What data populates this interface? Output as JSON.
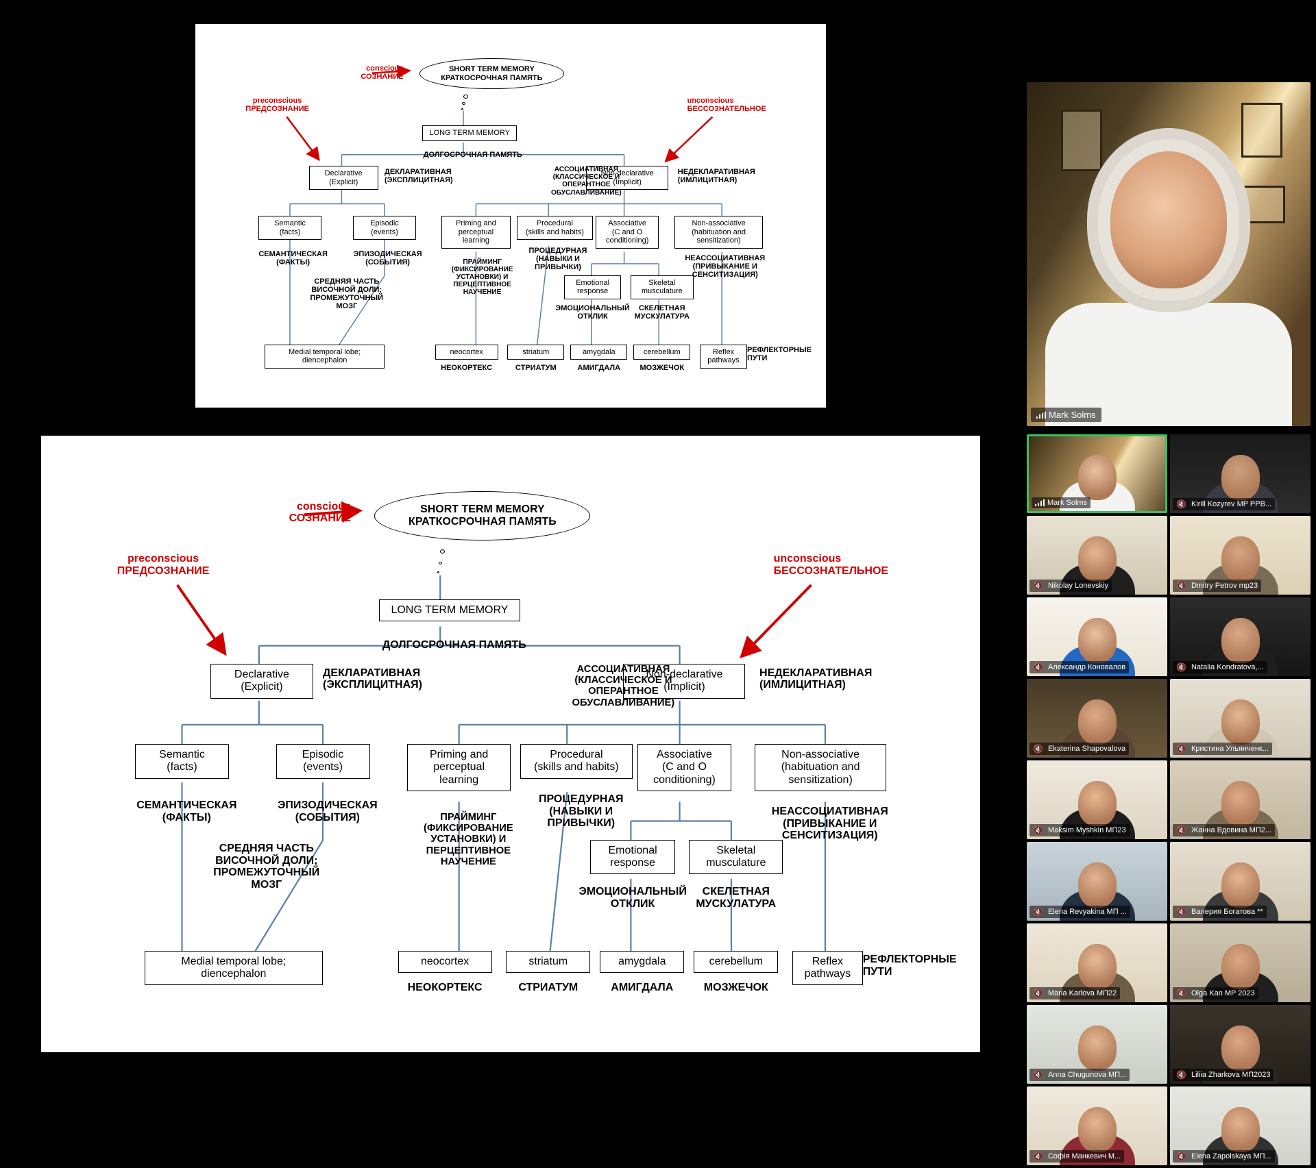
{
  "speaker": {
    "name": "Mark Solms"
  },
  "gallery": [
    [
      {
        "name": "Mark Solms",
        "muted": false,
        "active": true,
        "bg": "linear-gradient(120deg,#3a2d14,#c7a269 55%,#f3e0ae 60%,#5a4325)",
        "skin": "#e9c2a3",
        "body": "#f3f3f1"
      },
      {
        "name": "Kirill Kozyrev MP PPB...",
        "muted": true,
        "active": false,
        "bg": "linear-gradient(#1a1a1a,#2c2c2c)",
        "skin": "#caa07c",
        "body": "#3a3a42"
      }
    ],
    [
      {
        "name": "Nikolay Lonevskiy",
        "muted": true,
        "active": false,
        "bg": "linear-gradient(#e8e2d2,#cfc7b2)",
        "skin": "#e5b793",
        "body": "#1f1f1f"
      },
      {
        "name": "Dmitry Petrov mp23",
        "muted": true,
        "active": false,
        "bg": "linear-gradient(#ece4cf,#ddd0b5)",
        "skin": "#d7a582",
        "body": "#7a6b59"
      }
    ],
    [
      {
        "name": "Александр Коновалов",
        "muted": true,
        "active": false,
        "bg": "linear-gradient(#f7f4ee,#eae3d5)",
        "skin": "#e9c3a2",
        "body": "#2468c4"
      },
      {
        "name": "Natalia Kondratova,...",
        "muted": true,
        "active": false,
        "bg": "linear-gradient(#2b2b2b,#151515)",
        "skin": "#d9aa88",
        "body": "#1e1e1e"
      }
    ],
    [
      {
        "name": "Ekaterina Shapovalova",
        "muted": true,
        "active": false,
        "bg": "linear-gradient(#473b28,#6b583a)",
        "skin": "#dca986",
        "body": "#5b4533"
      },
      {
        "name": "Кристина Ульянченк...",
        "muted": true,
        "active": false,
        "bg": "linear-gradient(#e6e0d4,#d2cab7)",
        "skin": "#e6b995",
        "body": "#cfc6b3"
      }
    ],
    [
      {
        "name": "Maksim Myshkin МП23",
        "muted": true,
        "active": false,
        "bg": "linear-gradient(#efeadf,#ddd4c2)",
        "skin": "#e7b892",
        "body": "#1c1c1c"
      },
      {
        "name": "Жанна Вдовина МП2...",
        "muted": true,
        "active": false,
        "bg": "linear-gradient(#d9cfbc,#c1b69f)",
        "skin": "#ddaa88",
        "body": "#7d6a52"
      }
    ],
    [
      {
        "name": "Elena Revyakina МП ...",
        "muted": true,
        "active": false,
        "bg": "linear-gradient(#c9d4da,#a8b5bd)",
        "skin": "#e3b493",
        "body": "#223042"
      },
      {
        "name": "Валерия Богатова **",
        "muted": true,
        "active": false,
        "bg": "linear-gradient(#e5ded0,#d0c6b2)",
        "skin": "#e6b692",
        "body": "#3a3a3a"
      }
    ],
    [
      {
        "name": "Maria Karlova МП22",
        "muted": true,
        "active": false,
        "bg": "linear-gradient(#eee7d8,#ddd2bd)",
        "skin": "#e8bc99",
        "body": "#6e5c45"
      },
      {
        "name": "Olga Kan MP 2023",
        "muted": true,
        "active": false,
        "bg": "linear-gradient(#cfc6b3,#b7ac95)",
        "skin": "#dba885",
        "body": "#1f1f1f"
      }
    ],
    [
      {
        "name": "Anna Chugunova МП...",
        "muted": true,
        "active": false,
        "bg": "linear-gradient(#e2e6e0,#c9cec5)",
        "skin": "#e5b794",
        "body": "#cfd3cb"
      },
      {
        "name": "Liliia Zharkova МП2023",
        "muted": true,
        "active": false,
        "bg": "linear-gradient(#3a332a,#241f18)",
        "skin": "#dba784",
        "body": "#2c2620"
      }
    ],
    [
      {
        "name": "Софiя Манкевич М...",
        "muted": true,
        "active": false,
        "bg": "linear-gradient(#efeadd,#ded4c1)",
        "skin": "#e6b793",
        "body": "#8d2a34"
      },
      {
        "name": "Elena Zapolskaya МП...",
        "muted": true,
        "active": false,
        "bg": "linear-gradient(#e6e8e1,#d1d3cb)",
        "skin": "#e4b28f",
        "body": "#303030"
      }
    ]
  ],
  "slide": {
    "red_labels": {
      "conscious_en": "conscious",
      "conscious_ru": "СОЗНАНИЕ",
      "precon_en": "preconscious",
      "precon_ru": "ПРЕДСОЗНАНИЕ",
      "uncon_en": "unconscious",
      "uncon_ru": "БЕССОЗНАТЕЛЬНОЕ"
    },
    "cloud": {
      "line1": "SHORT TERM MEMORY",
      "line2": "КРАТКОСРОЧНАЯ ПАМЯТЬ"
    },
    "ltm_box": "LONG TERM MEMORY",
    "ltm_ru": "ДОЛГОСРОЧНАЯ ПАМЯТЬ",
    "decl_box": {
      "l1": "Declarative",
      "l2": "(Explicit)"
    },
    "decl_ru": {
      "l1": "ДЕКЛАРАТИВНАЯ",
      "l2": "(ЭКСПЛИЦИТНАЯ)"
    },
    "nondecl_box": {
      "l1": "Non-declarative",
      "l2": "(Implicit)"
    },
    "nondecl_ru": {
      "l1": "НЕДЕКЛАРАТИВНАЯ",
      "l2": "(ИМЛИЦИТНАЯ)"
    },
    "assoc_ru": {
      "l1": "АССОЦИАТИВНАЯ",
      "l2": "(КЛАССИЧЕСКОЕ И",
      "l3": "ОПЕРАНТНОЕ",
      "l4": "ОБУСЛАВЛИВАНИЕ)"
    },
    "semantic_box": {
      "l1": "Semantic",
      "l2": "(facts)"
    },
    "semantic_ru": {
      "l1": "СЕМАНТИЧЕСКАЯ",
      "l2": "(ФАКТЫ)"
    },
    "episodic_box": {
      "l1": "Episodic",
      "l2": "(events)"
    },
    "episodic_ru": {
      "l1": "ЭПИЗОДИЧЕСКАЯ",
      "l2": "(СОБЫТИЯ)"
    },
    "mtl_ru": {
      "l1": "СРЕДНЯЯ ЧАСТЬ",
      "l2": "ВИСОЧНОЙ ДОЛИ;",
      "l3": "ПРОМЕЖУТОЧНЫЙ",
      "l4": "МОЗГ"
    },
    "mtl_box": {
      "l1": "Medial temporal lobe;",
      "l2": "diencephalon"
    },
    "priming_box": {
      "l1": "Priming and",
      "l2": "perceptual",
      "l3": "learning"
    },
    "priming_ru": {
      "l1": "ПРАЙМИНГ",
      "l2": "(ФИКСИРОВАНИЕ",
      "l3": "УСТАНОВКИ) И",
      "l4": "ПЕРЦЕПТИВНОЕ",
      "l5": "НАУЧЕНИЕ"
    },
    "proc_box": {
      "l1": "Procedural",
      "l2": "(skills and habits)"
    },
    "proc_ru": {
      "l1": "ПРОЦЕДУРНАЯ",
      "l2": "(НАВЫКИ И",
      "l3": "ПРИВЫЧКИ)"
    },
    "assoc_box": {
      "l1": "Associative",
      "l2": "(C and O",
      "l3": "conditioning)"
    },
    "nonassoc_box": {
      "l1": "Non-associative",
      "l2": "(habituation and",
      "l3": "sensitization)"
    },
    "nonassoc_ru": {
      "l1": "НЕАССОЦИАТИВНАЯ",
      "l2": "(ПРИВЫКАНИЕ И",
      "l3": "СЕНСИТИЗАЦИЯ)"
    },
    "emo_box": {
      "l1": "Emotional",
      "l2": "response"
    },
    "emo_ru": {
      "l1": "ЭМОЦИОНАЛЬНЫЙ",
      "l2": "ОТКЛИК"
    },
    "skel_box": {
      "l1": "Skeletal",
      "l2": "musculature"
    },
    "skel_ru": {
      "l1": "СКЕЛЕТНАЯ",
      "l2": "МУСКУЛАТУРА"
    },
    "neo_box": "neocortex",
    "neo_ru": "НЕОКОРТЕКС",
    "str_box": "striatum",
    "str_ru": "СТРИАТУМ",
    "amy_box": "amygdala",
    "amy_ru": "АМИГДАЛА",
    "cer_box": "cerebellum",
    "cer_ru": "МОЗЖЕЧОК",
    "ref_box": {
      "l1": "Reflex",
      "l2": "pathways"
    },
    "ref_ru": {
      "l1": "РЕФЛЕКТОРНЫЕ",
      "l2": "ПУТИ"
    },
    "arrow_color": "#d10000",
    "line_color": "#5b7fa6"
  }
}
